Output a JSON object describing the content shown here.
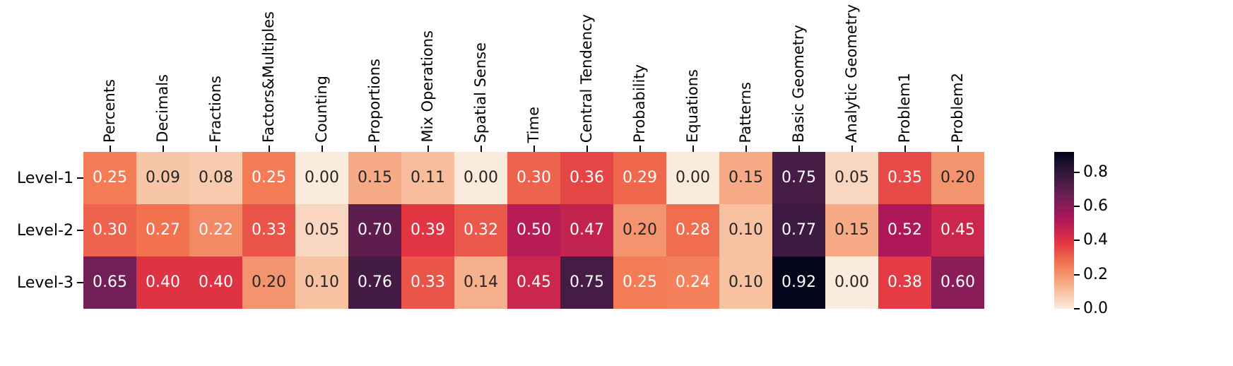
{
  "chart_data": {
    "type": "heatmap",
    "title": "",
    "categories": [
      "Percents",
      "Decimals",
      "Fractions",
      "Factors&Multiples",
      "Counting",
      "Proportions",
      "Mix Operations",
      "Spatial Sense",
      "Time",
      "Central Tendency",
      "Probability",
      "Equations",
      "Patterns",
      "Basic Geometry",
      "Analytic Geometry",
      "Problem1",
      "Problem2"
    ],
    "rows": [
      "Level-1",
      "Level-2",
      "Level-3"
    ],
    "values": [
      [
        0.25,
        0.09,
        0.08,
        0.25,
        0.0,
        0.15,
        0.11,
        0.0,
        0.3,
        0.36,
        0.29,
        0.0,
        0.15,
        0.75,
        0.05,
        0.35,
        0.2
      ],
      [
        0.3,
        0.27,
        0.22,
        0.33,
        0.05,
        0.7,
        0.39,
        0.32,
        0.5,
        0.47,
        0.2,
        0.28,
        0.1,
        0.77,
        0.15,
        0.52,
        0.45
      ],
      [
        0.65,
        0.4,
        0.4,
        0.2,
        0.1,
        0.76,
        0.33,
        0.14,
        0.45,
        0.75,
        0.25,
        0.24,
        0.1,
        0.92,
        0.0,
        0.38,
        0.6
      ]
    ],
    "vmin": 0.0,
    "vmax": 0.92,
    "annotation_decimals": 2,
    "grid": "off",
    "colorbar": {
      "position": "right",
      "ticks": [
        0.8,
        0.6,
        0.4,
        0.2,
        0.0
      ],
      "tick_decimals": 1
    },
    "colormap": {
      "name": "rocket_r",
      "anchors": [
        {
          "t": 0.0,
          "color": "#FAEBDD"
        },
        {
          "t": 0.143,
          "color": "#F6B48F"
        },
        {
          "t": 0.286,
          "color": "#F37651"
        },
        {
          "t": 0.429,
          "color": "#E13342"
        },
        {
          "t": 0.571,
          "color": "#AD1759"
        },
        {
          "t": 0.714,
          "color": "#701F57"
        },
        {
          "t": 0.857,
          "color": "#35193E"
        },
        {
          "t": 1.0,
          "color": "#03051A"
        }
      ],
      "annotation_dark_text": "#262626",
      "annotation_light_text": "#FFFFFF",
      "luminance_threshold": 0.408
    }
  }
}
